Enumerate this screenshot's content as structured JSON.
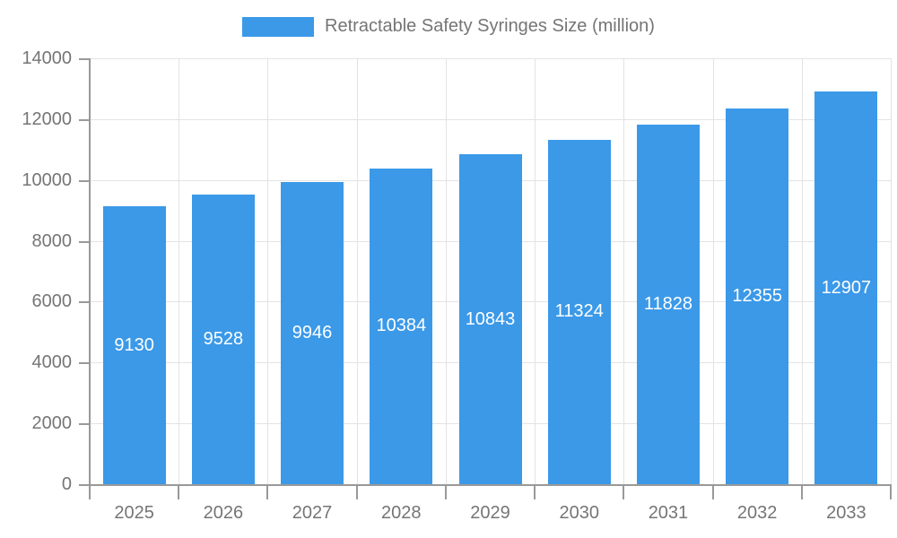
{
  "legend": {
    "label": "Retractable Safety Syringes Size (million)"
  },
  "chart_data": {
    "type": "bar",
    "title": "",
    "categories": [
      "2025",
      "2026",
      "2027",
      "2028",
      "2029",
      "2030",
      "2031",
      "2032",
      "2033"
    ],
    "series": [
      {
        "name": "Retractable Safety Syringes Size (million)",
        "values": [
          9130,
          9528,
          9946,
          10384,
          10843,
          11324,
          11828,
          12355,
          12907
        ]
      }
    ],
    "bar_labels": [
      "9130",
      "9528",
      "9946",
      "10384",
      "10843",
      "11324",
      "11828",
      "12355",
      "12907"
    ],
    "xlabel": "",
    "ylabel": "",
    "ylim": [
      0,
      14000
    ],
    "ytick_step": 2000,
    "ytick_labels": [
      "0",
      "2000",
      "4000",
      "6000",
      "8000",
      "10000",
      "12000",
      "14000"
    ],
    "grid": "horizontal and vertical gridlines on",
    "legend_position": "top-center"
  },
  "colors": {
    "bar": "#3B99E8",
    "bar_label": "#ffffff",
    "axis": "#999999",
    "grid": "#e3e3e3",
    "tick_label": "#757575",
    "background": "#ffffff"
  }
}
